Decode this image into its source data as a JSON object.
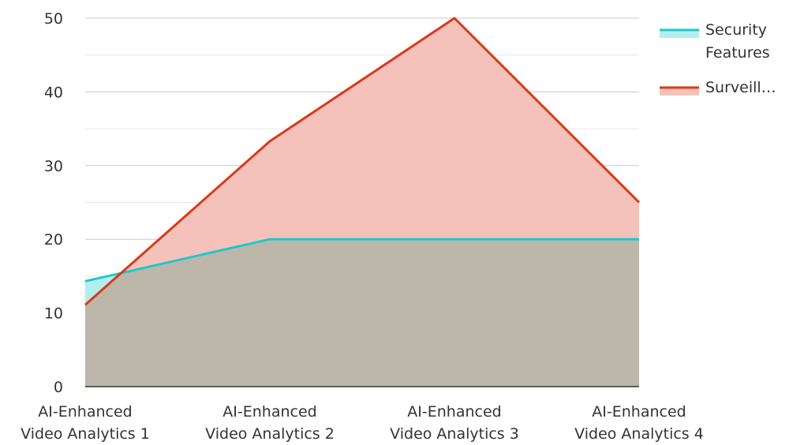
{
  "chart_data": {
    "type": "area",
    "categories": [
      "AI-Enhanced Video Analytics 1",
      "AI-Enhanced Video Analytics 2",
      "AI-Enhanced Video Analytics 3",
      "AI-Enhanced Video Analytics 4"
    ],
    "category_lines": [
      [
        "AI-Enhanced",
        "Video Analytics 1"
      ],
      [
        "AI-Enhanced",
        "Video Analytics 2"
      ],
      [
        "AI-Enhanced",
        "Video Analytics 3"
      ],
      [
        "AI-Enhanced",
        "Video Analytics 4"
      ]
    ],
    "series": [
      {
        "name": "Security Features",
        "legend_lines": [
          "Security",
          "Features"
        ],
        "values": [
          14.3,
          20,
          20,
          20
        ],
        "line_color": "#1fc8c8",
        "fill_color": "#b3eeee"
      },
      {
        "name": "Surveill…",
        "legend_lines": [
          "Surveill…"
        ],
        "values": [
          11.1,
          33.3,
          50,
          25
        ],
        "line_color": "#d93a1a",
        "fill_color": "#f4c2ba"
      }
    ],
    "overlap_color": "#bdb6aa",
    "y_ticks": [
      0,
      10,
      20,
      30,
      40,
      50
    ],
    "ylim": [
      0,
      50
    ],
    "grid": true,
    "legend_position": "top-right",
    "title": "",
    "xlabel": "",
    "ylabel": ""
  }
}
